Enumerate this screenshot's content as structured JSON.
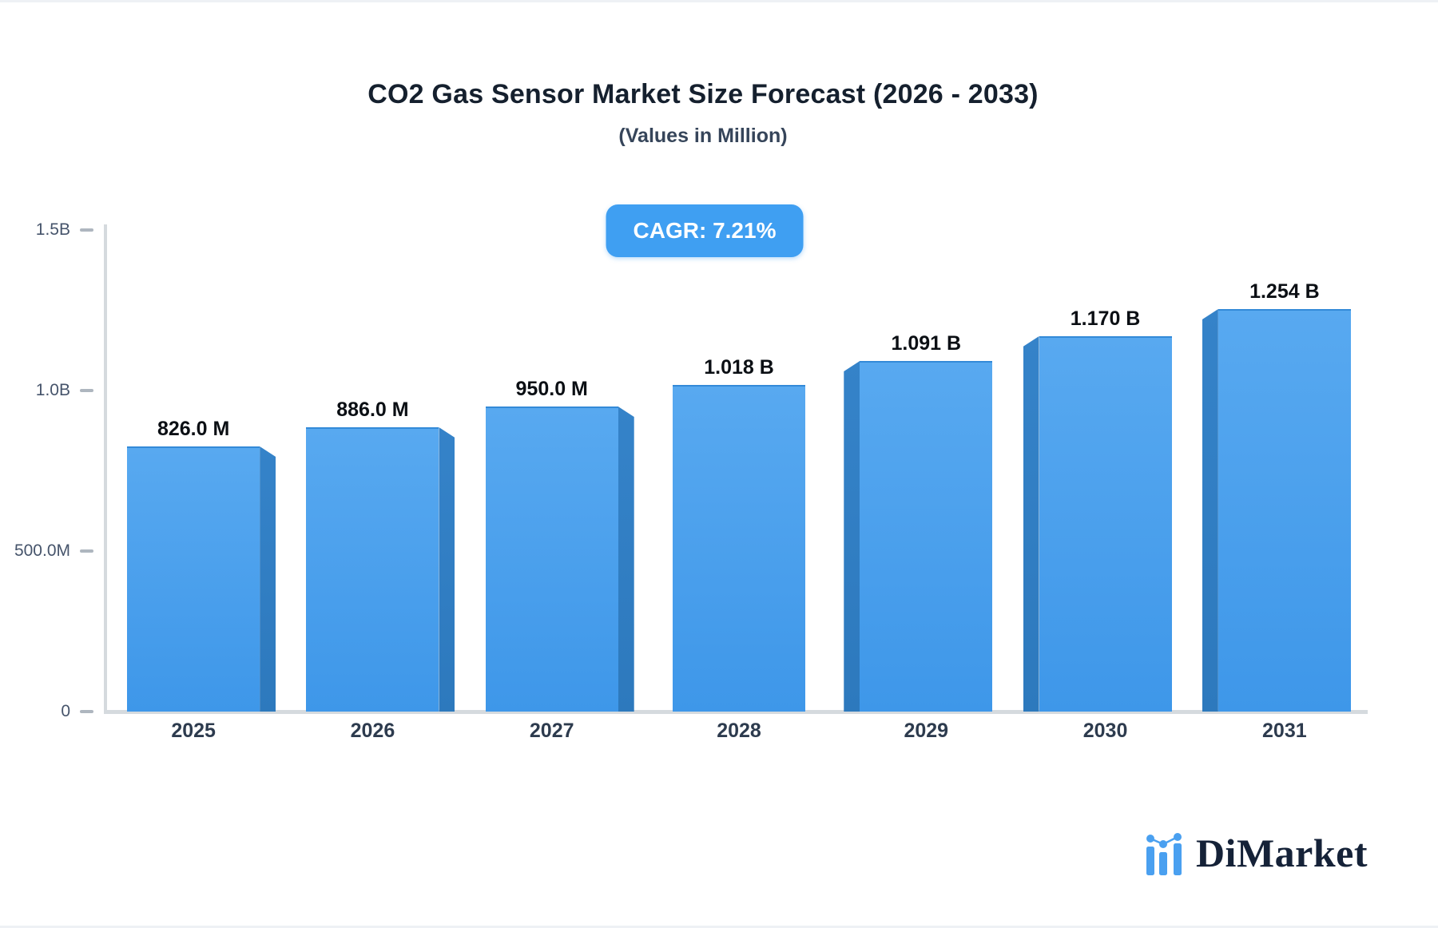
{
  "header": {
    "title": "CO2 Gas Sensor Market Size Forecast (2026 - 2033)",
    "subtitle": "(Values in Million)",
    "cagr_badge": "CAGR: 7.21%"
  },
  "chart_data": {
    "type": "bar",
    "title": "CO2 Gas Sensor Market Size Forecast (2026 - 2033)",
    "subtitle": "(Values in Million)",
    "cagr_percent": 7.21,
    "categories": [
      "2025",
      "2026",
      "2027",
      "2028",
      "2029",
      "2030",
      "2031"
    ],
    "values_millions": [
      826,
      886,
      950,
      1018,
      1091,
      1170,
      1254
    ],
    "value_labels": [
      "826.0 M",
      "886.0 M",
      "950.0 M",
      "1.018 B",
      "1.091 B",
      "1.170 B",
      "1.254 B"
    ],
    "yticks": [
      {
        "label": "0",
        "value": 0
      },
      {
        "label": "500.0M",
        "value": 500
      },
      {
        "label": "1.0B",
        "value": 1000
      },
      {
        "label": "1.5B",
        "value": 1500
      }
    ],
    "ylim": [
      0,
      1500
    ],
    "grid": false,
    "legend": false,
    "bar_color_top": "#58a9f0",
    "bar_color_bottom": "#3e97e9",
    "bar_side_color_top": "#3583c9",
    "bar_side_color_bottom": "#2d79bd",
    "badge_color": "#3f9ff2",
    "axis_color": "#d5dade"
  },
  "footer": {
    "brand": "DiMarket"
  }
}
